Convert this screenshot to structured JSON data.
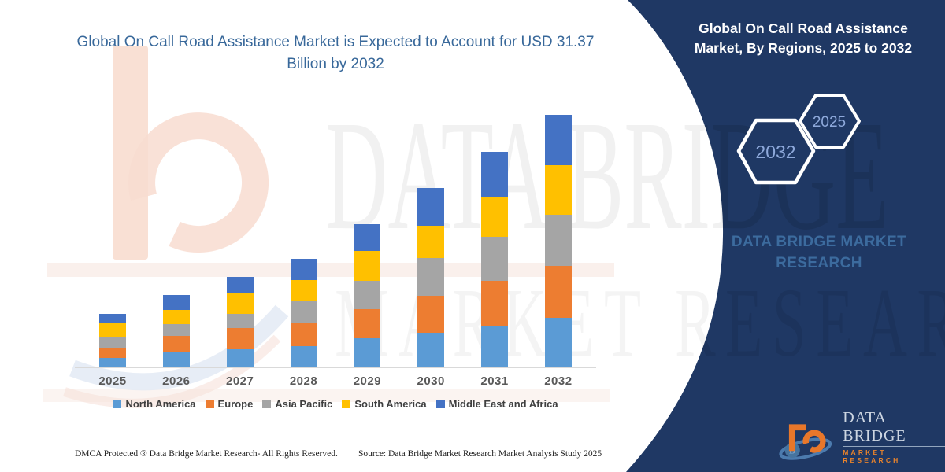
{
  "chart_data": {
    "type": "bar",
    "stacked": true,
    "title": "Global On Call Road Assistance Market is Expected to Account for USD 31.37 Billion by 2032",
    "unit": "USD Billion",
    "categories": [
      "2025",
      "2026",
      "2027",
      "2028",
      "2029",
      "2030",
      "2031",
      "2032"
    ],
    "series": [
      {
        "name": "North America",
        "color": "#5B9BD5",
        "values": [
          1.1,
          1.8,
          2.2,
          2.6,
          3.5,
          4.2,
          5.1,
          6.1
        ]
      },
      {
        "name": "Europe",
        "color": "#ED7D31",
        "values": [
          1.3,
          2.0,
          2.6,
          2.8,
          3.7,
          4.6,
          5.6,
          6.5
        ]
      },
      {
        "name": "Asia Pacific",
        "color": "#A5A5A5",
        "values": [
          1.3,
          1.5,
          1.8,
          2.7,
          3.5,
          4.7,
          5.5,
          6.3
        ]
      },
      {
        "name": "South America",
        "color": "#FFC000",
        "values": [
          1.7,
          1.8,
          2.6,
          2.7,
          3.7,
          4.1,
          5.0,
          6.2
        ]
      },
      {
        "name": "Middle East and Africa",
        "color": "#4472C4",
        "values": [
          1.2,
          1.8,
          2.0,
          2.6,
          3.4,
          4.7,
          5.6,
          6.27
        ]
      }
    ],
    "totals": [
      6.6,
      8.9,
      11.2,
      13.4,
      17.8,
      22.3,
      26.8,
      31.37
    ],
    "xlabel": "",
    "ylabel": "",
    "ylim": [
      0,
      32
    ],
    "grid": false,
    "y_axis_visible": false,
    "legend_position": "bottom"
  },
  "sidebar": {
    "header": "Global On Call Road Assistance Market, By Regions, 2025 to 2032",
    "hexagons": {
      "large": "2032",
      "small": "2025"
    },
    "brand_text": "DATA BRIDGE MARKET RESEARCH",
    "logo": {
      "name": "DATA BRIDGE",
      "subtitle": "MARKET RESEARCH"
    }
  },
  "watermark": {
    "line1": "DATA BRIDGE",
    "line2": "MARKET RESEARCH"
  },
  "footer": {
    "dmca": "DMCA Protected ® Data Bridge Market Research-  All Rights Reserved.",
    "source": "Source: Data Bridge Market Research  Market Analysis Study 2025"
  },
  "colors": {
    "sidebar_navy": "#1F3864",
    "title_blue": "#38689A",
    "axis_label": "#595959",
    "legend_label": "#3F3F3F",
    "hex_year_text": "#8EA9DB",
    "brand_blue": "#3C6B9E",
    "logo_orange": "#E8832C",
    "baseline_gray": "#D9D9D9"
  }
}
